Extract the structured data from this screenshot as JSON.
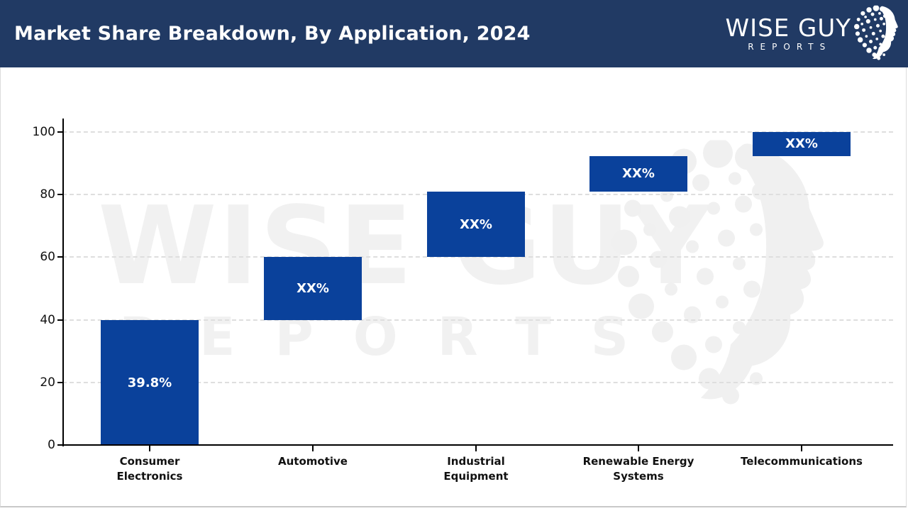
{
  "header": {
    "title": "Market Share Breakdown, By Application, 2024",
    "logo": {
      "brand": "WISE GUY",
      "sub": "REPORTS"
    }
  },
  "watermark": {
    "brand": "WISE GUY",
    "sub": "REPORTS"
  },
  "chart_data": {
    "type": "bar",
    "subtype": "waterfall",
    "title": "Market Share Breakdown, By Application, 2024",
    "categories": [
      "Consumer Electronics",
      "Automotive",
      "Industrial Equipment",
      "Renewable Energy Systems",
      "Telecommunications"
    ],
    "bars": [
      {
        "category": "Consumer\nElectronics",
        "start": 0,
        "end": 39.8,
        "label": "39.8%"
      },
      {
        "category": "Automotive",
        "start": 39.8,
        "end": 60,
        "label": "XX%"
      },
      {
        "category": "Industrial\nEquipment",
        "start": 60,
        "end": 81,
        "label": "XX%"
      },
      {
        "category": "Renewable Energy\nSystems",
        "start": 81,
        "end": 92.4,
        "label": "XX%"
      },
      {
        "category": "Telecommunications",
        "start": 92.4,
        "end": 100,
        "label": "XX%"
      }
    ],
    "values": [
      39.8,
      20.2,
      21,
      11.4,
      7.6
    ],
    "yticks": [
      0,
      20,
      40,
      60,
      80,
      100
    ],
    "ylim": [
      0,
      100
    ],
    "grid": "horizontal-dashed",
    "legend": null
  },
  "colors": {
    "header_bg": "#213a64",
    "bar": "#0a419b",
    "grid": "#dedede",
    "axis": "#000000",
    "watermark": "#f1f1f1",
    "value_label": "#ffffff"
  }
}
